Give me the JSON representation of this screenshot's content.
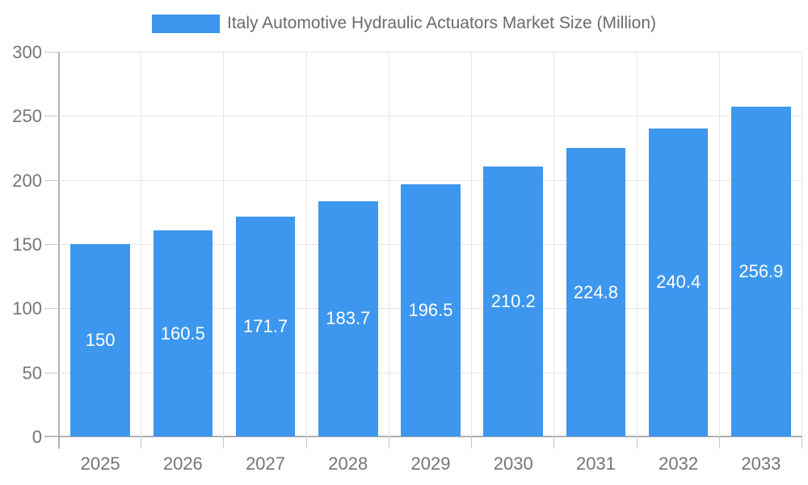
{
  "legend": {
    "label": "Italy Automotive Hydraulic Actuators Market Size (Million)"
  },
  "chart_data": {
    "type": "bar",
    "title": "Italy Automotive Hydraulic Actuators Market Size (Million)",
    "categories": [
      "2025",
      "2026",
      "2027",
      "2028",
      "2029",
      "2030",
      "2031",
      "2032",
      "2033"
    ],
    "values": [
      150,
      160.5,
      171.7,
      183.7,
      196.5,
      210.2,
      224.8,
      240.4,
      256.9
    ],
    "bar_value_labels": [
      "150",
      "160.5",
      "171.7",
      "183.7",
      "196.5",
      "210.2",
      "224.8",
      "240.4",
      "256.9"
    ],
    "xlabel": "",
    "ylabel": "",
    "ylim": [
      0,
      300
    ],
    "yticks": [
      0,
      50,
      100,
      150,
      200,
      250,
      300
    ],
    "grid": true,
    "legend_position": "top",
    "colors": {
      "bar": "#3d97ee",
      "bar_label_text": "#ffffff",
      "axis_text": "#757575",
      "legend_text": "#6b6b6b",
      "gridline": "#e6e6e6",
      "axis_line": "#b1b1b1"
    }
  }
}
